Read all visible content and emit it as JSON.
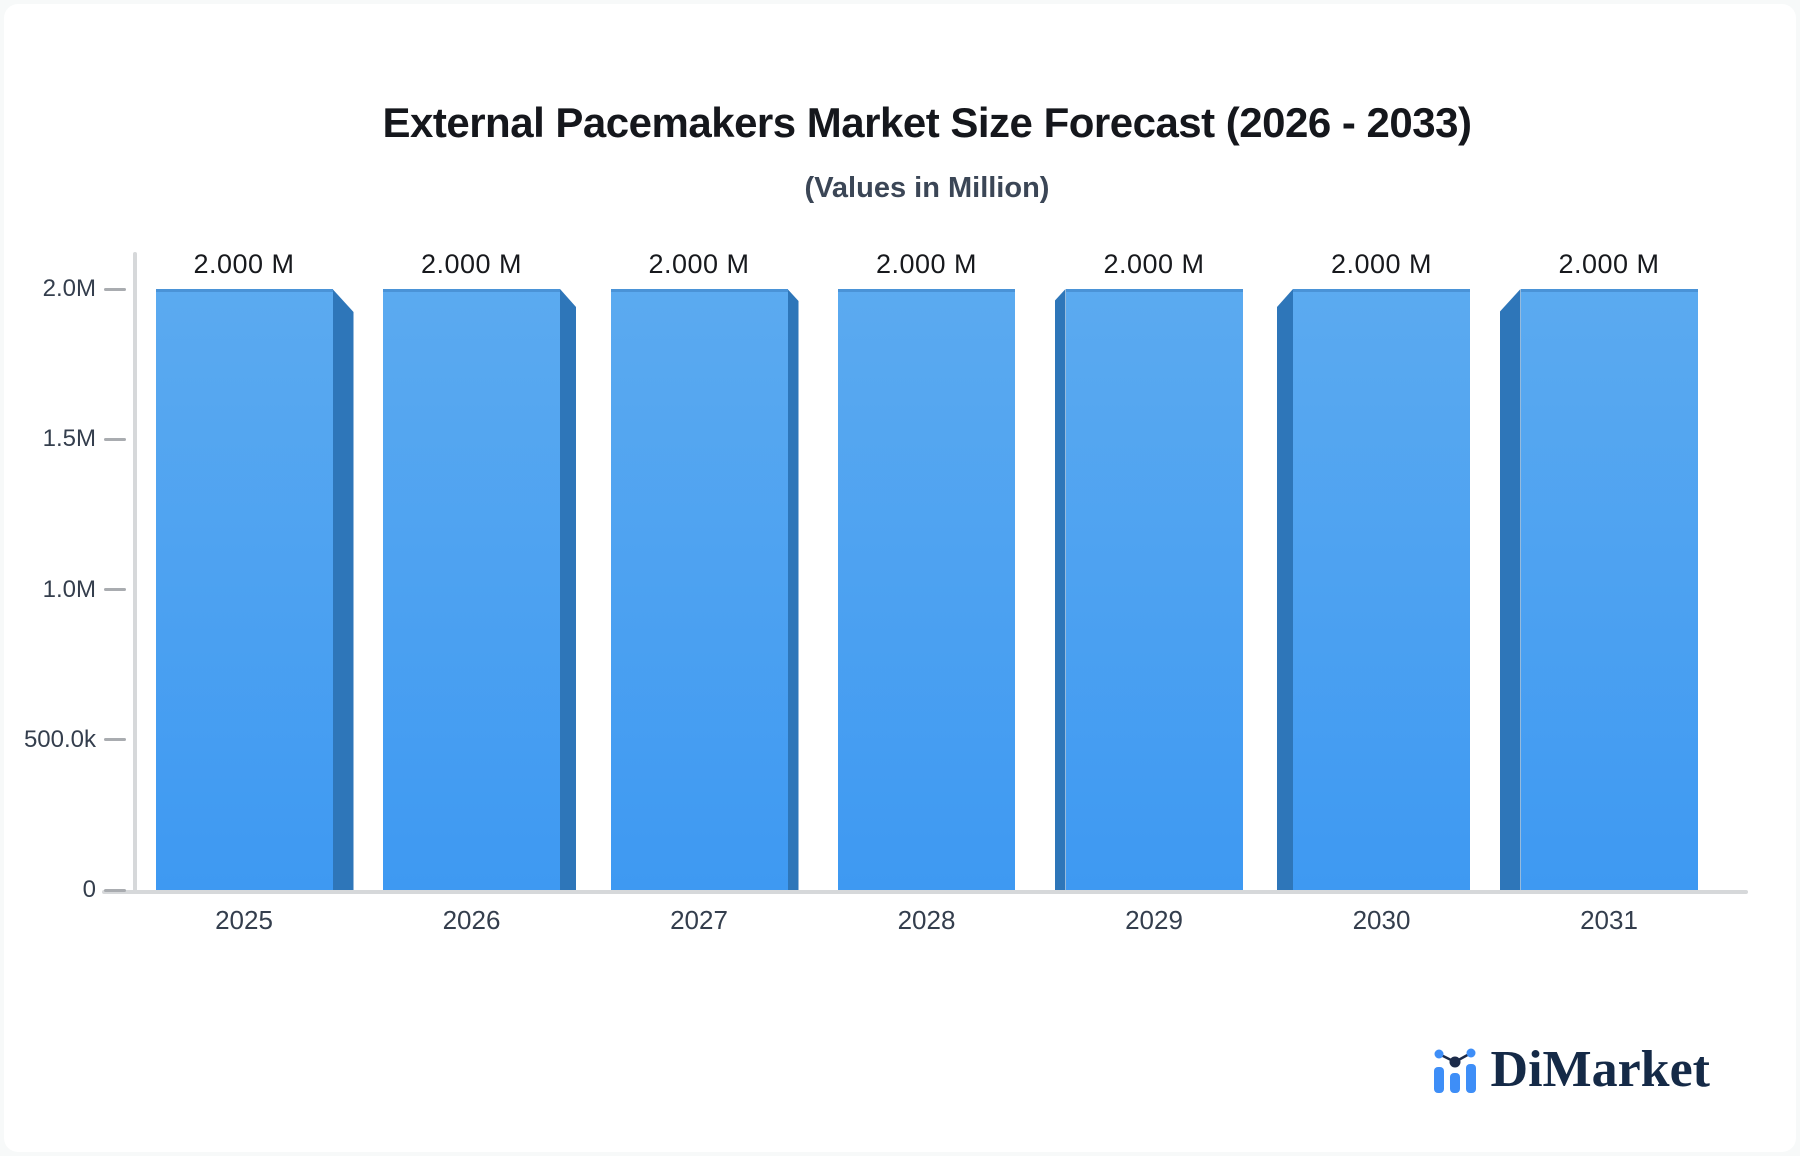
{
  "chart_data": {
    "type": "bar",
    "title": "External Pacemakers Market Size Forecast (2026 - 2033)",
    "subtitle": "(Values in Million)",
    "xlabel": "",
    "ylabel": "",
    "categories": [
      "2025",
      "2026",
      "2027",
      "2028",
      "2029",
      "2030",
      "2031"
    ],
    "values": [
      2000000,
      2000000,
      2000000,
      2000000,
      2000000,
      2000000,
      2000000
    ],
    "value_labels": [
      "2.000 M",
      "2.000 M",
      "2.000 M",
      "2.000 M",
      "2.000 M",
      "2.000 M",
      "2.000 M"
    ],
    "ylim": [
      0,
      2000000
    ],
    "yticks": [
      {
        "value": 0,
        "label": "0"
      },
      {
        "value": 500000,
        "label": "500.0k"
      },
      {
        "value": 1000000,
        "label": "1.0M"
      },
      {
        "value": 1500000,
        "label": "1.5M"
      },
      {
        "value": 2000000,
        "label": "2.0M"
      }
    ],
    "grid": false,
    "legend": false,
    "colors": {
      "bar_top": "#5baaf0",
      "bar_bottom": "#3e99f2",
      "bar_side": "#2e76b9",
      "axis_line": "#d6d8da",
      "tick_mark": "#a9acb0",
      "tick_label": "#343e4d",
      "value_label": "#17191d"
    }
  },
  "logo": {
    "text": "DiMarket",
    "wordmark_color": "#152a47",
    "icon": "dimarket-bars-icon",
    "icon_bar_color": "#3e8ef7",
    "icon_dot_color": "#1c2b4a"
  }
}
